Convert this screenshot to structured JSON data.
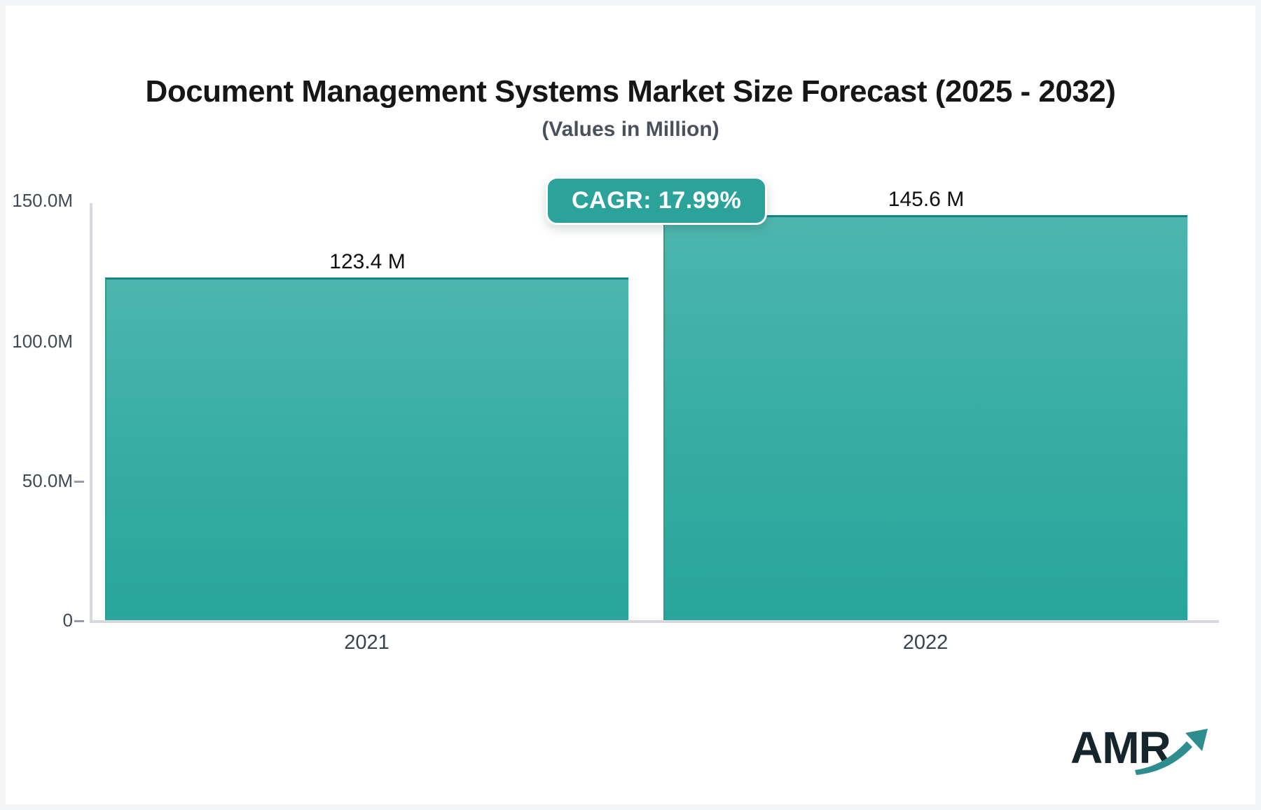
{
  "chart_data": {
    "type": "bar",
    "title": "Document Management Systems Market Size Forecast (2025 - 2032)",
    "subtitle": "(Values in Million)",
    "categories": [
      "2021",
      "2022"
    ],
    "values": [
      123.4,
      145.6
    ],
    "value_labels": [
      "123.4 M",
      "145.6 M"
    ],
    "unit": "Million",
    "ylim": [
      0,
      150
    ],
    "y_ticks": [
      "150.0M",
      "100.0M",
      "50.0M",
      "0"
    ],
    "grid": false,
    "legend": false,
    "cagr_badge": "CAGR: 17.99%",
    "colors": {
      "bar_top": "#4db6ae",
      "bar_bottom": "#29a59b",
      "bar_edge": "#19837d",
      "badge": "#2ba39b",
      "axis": "#d6dade",
      "logo_arrow": "#2e8e8f"
    }
  },
  "logo": {
    "text": "AMR"
  }
}
